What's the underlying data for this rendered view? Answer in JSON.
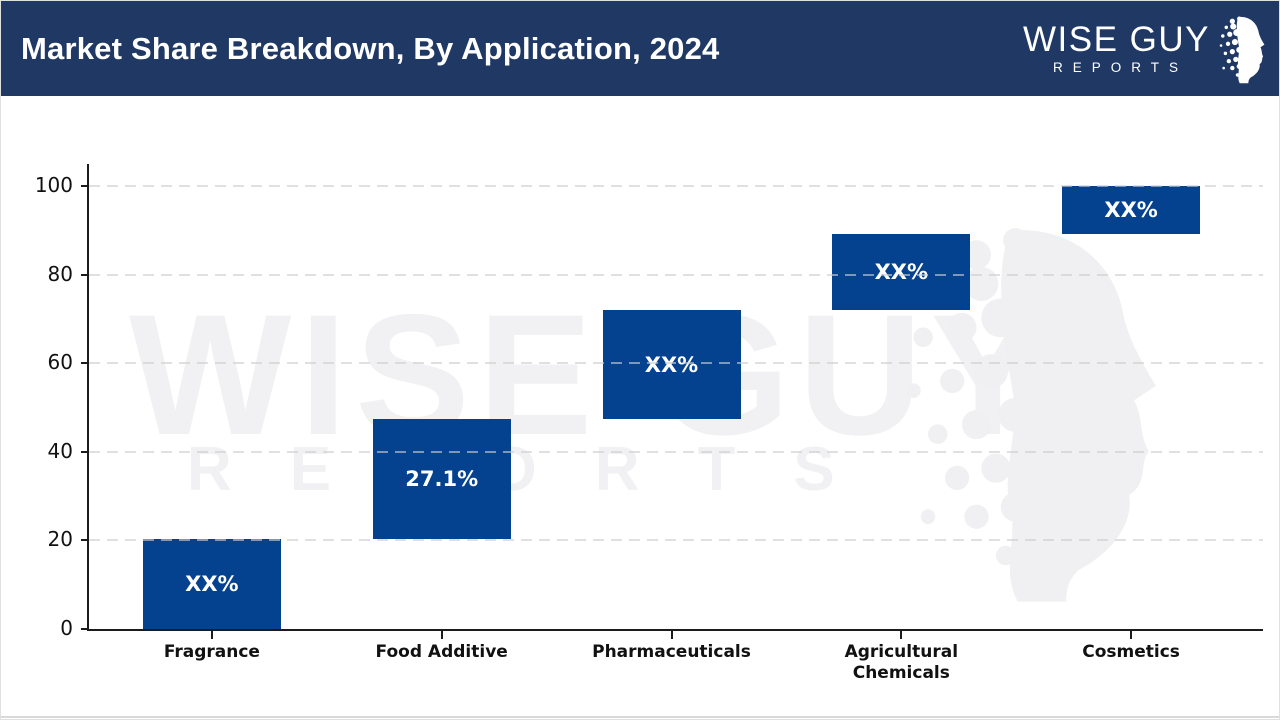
{
  "header": {
    "title": "Market Share Breakdown, By Application, 2024",
    "bg_color": "#1f3864",
    "logo": {
      "line1": "WISE GUY",
      "line2": "REPORTS"
    }
  },
  "watermark": {
    "line1": "WISE GUY",
    "line2": "REPORTS"
  },
  "chart_data": {
    "type": "bar",
    "subtype": "waterfall",
    "title": "Market Share Breakdown, By Application, 2024",
    "categories": [
      "Fragrance",
      "Food Additive",
      "Pharmaceuticals",
      "Agricultural Chemicals",
      "Cosmetics"
    ],
    "segments": [
      {
        "category": "Fragrance",
        "start": 0,
        "end": 20.4,
        "label": "XX%"
      },
      {
        "category": "Food Additive",
        "start": 20.4,
        "end": 47.5,
        "label": "27.1%",
        "value": 27.1
      },
      {
        "category": "Pharmaceuticals",
        "start": 47.5,
        "end": 71.9,
        "label": "XX%"
      },
      {
        "category": "Agricultural Chemicals",
        "start": 71.9,
        "end": 89.2,
        "label": "XX%"
      },
      {
        "category": "Cosmetics",
        "start": 89.2,
        "end": 100,
        "label": "XX%"
      }
    ],
    "y_ticks": [
      0,
      20,
      40,
      60,
      80,
      100
    ],
    "ylim": [
      0,
      105
    ],
    "xlabel": "",
    "ylabel": "",
    "grid": true,
    "legend": false,
    "bar_color": "#04428f",
    "label_color": "#ffffff",
    "axis_color": "#1c1c1c"
  }
}
